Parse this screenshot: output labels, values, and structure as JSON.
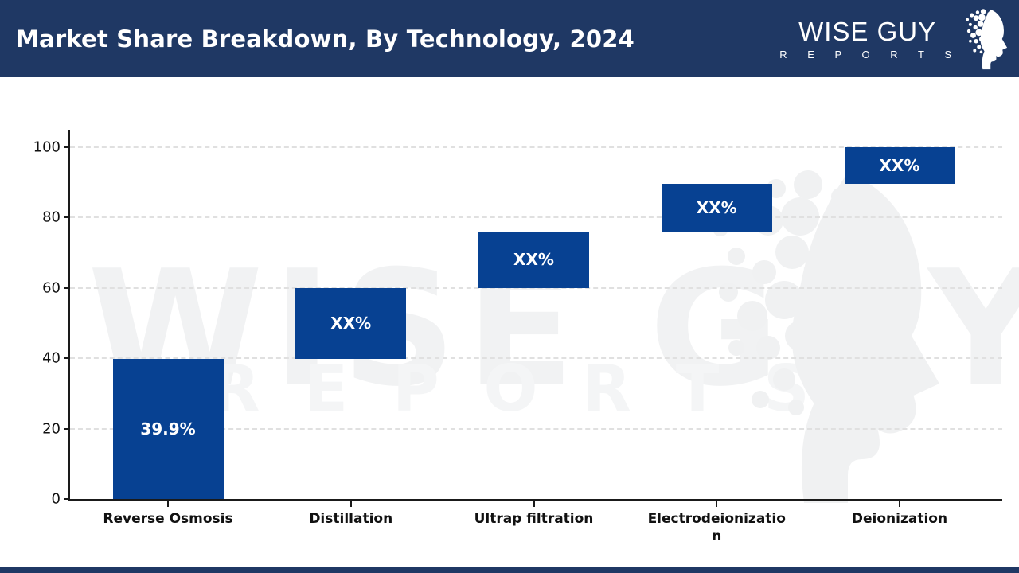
{
  "header": {
    "title": "Market Share Breakdown, By Technology, 2024",
    "logo": {
      "wordmark": "WISE GUY",
      "subtext": "R E P O R T S"
    }
  },
  "watermark": {
    "line1": "WISE GUY",
    "line2": "R E P O R T S"
  },
  "chart_data": {
    "type": "bar",
    "subtype": "waterfall",
    "title": "Market Share Breakdown, By Technology, 2024",
    "categories": [
      "Reverse Osmosis",
      "Distillation",
      "Ultrap filtration",
      "Electrodeionization",
      "Deionization"
    ],
    "category_display": [
      "Reverse Osmosis",
      "Distillation",
      "Ultrap filtration",
      "Electrodeionizatio\nn",
      "Deionization"
    ],
    "bars": [
      {
        "category": "Reverse Osmosis",
        "start": 0,
        "end": 39.9,
        "value": 39.9,
        "value_label": "39.9%"
      },
      {
        "category": "Distillation",
        "start": 39.9,
        "end": 60,
        "value": 20.1,
        "value_label": "XX%"
      },
      {
        "category": "Ultrap filtration",
        "start": 60,
        "end": 76,
        "value": 16,
        "value_label": "XX%"
      },
      {
        "category": "Electrodeionization",
        "start": 76,
        "end": 89.5,
        "value": 13.5,
        "value_label": "XX%"
      },
      {
        "category": "Deionization",
        "start": 89.5,
        "end": 100,
        "value": 10.5,
        "value_label": "XX%"
      }
    ],
    "y_ticks": [
      0,
      20,
      40,
      60,
      80,
      100
    ],
    "ylim": [
      0,
      105
    ],
    "xlabel": "",
    "ylabel": "",
    "legend": false,
    "grid": "horizontal-dashed",
    "bar_color": "#074192",
    "value_label_color": "#ffffff"
  },
  "colors": {
    "header_bg": "#1f3864",
    "footer_bg": "#1f3864",
    "bar": "#074192",
    "grid": "#e0e0e0",
    "axis": "#1a1a1a",
    "watermark": "#f1f2f3"
  }
}
